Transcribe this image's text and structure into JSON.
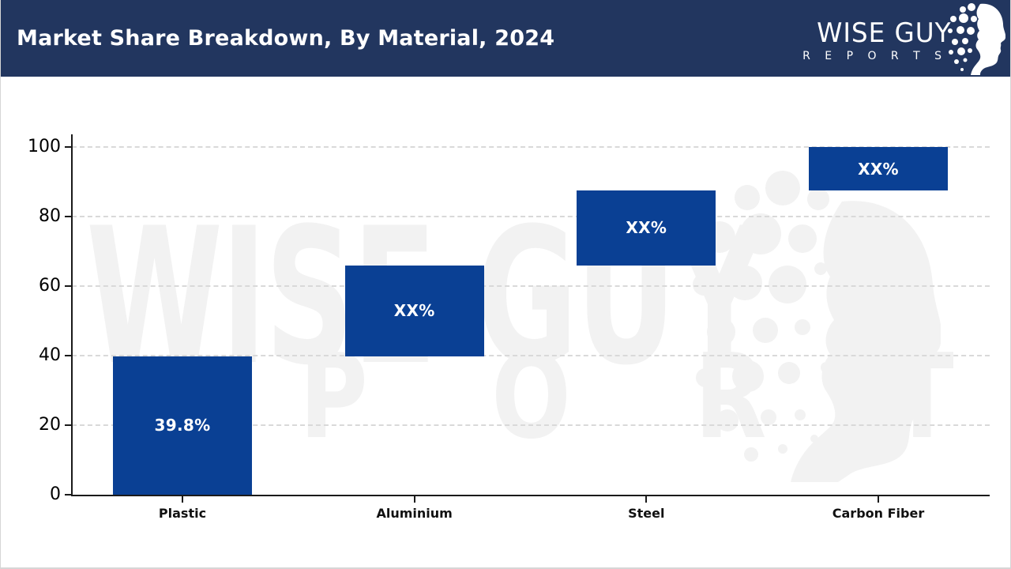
{
  "header": {
    "title": "Market Share Breakdown, By Material, 2024",
    "logo": {
      "name": "WISE GUY",
      "sub": "R E P O R T S",
      "icon": "dotted-head-profile"
    }
  },
  "watermark": {
    "line1": "WISE GUY",
    "line2": "P O R T S",
    "icon": "dotted-head-profile"
  },
  "chart_data": {
    "type": "bar",
    "subtype": "waterfall",
    "title": "Market Share Breakdown, By Material, 2024",
    "categories": [
      "Plastic",
      "Aluminium",
      "Steel",
      "Carbon Fiber"
    ],
    "bars": [
      {
        "category": "Plastic",
        "start": 0,
        "end": 39.8,
        "value": 39.8,
        "label": "39.8%"
      },
      {
        "category": "Aluminium",
        "start": 39.8,
        "end": 66.0,
        "value": 26.2,
        "label": "XX%"
      },
      {
        "category": "Steel",
        "start": 66.0,
        "end": 87.5,
        "value": 21.5,
        "label": "XX%"
      },
      {
        "category": "Carbon Fiber",
        "start": 87.5,
        "end": 100.0,
        "value": 12.5,
        "label": "XX%"
      }
    ],
    "yticks": [
      0,
      20,
      40,
      60,
      80,
      100
    ],
    "ylim": [
      0,
      105
    ],
    "xlabel": "",
    "ylabel": "",
    "grid": "horizontal-dashed",
    "gridline_color": "#d9d9d9",
    "legend": "none",
    "bar_color": "#0a4094",
    "bar_label_color": "#ffffff",
    "axis_color": "#1a1a1a"
  },
  "colors": {
    "header_bg": "#22365f",
    "body_bg": "#ffffff",
    "watermark": "#f2f2f2"
  }
}
